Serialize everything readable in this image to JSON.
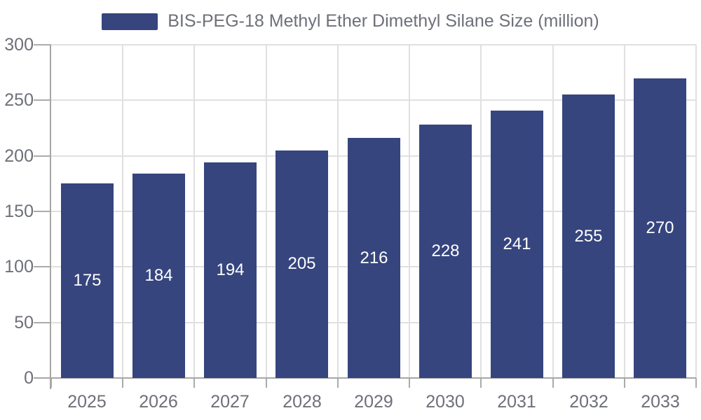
{
  "legend": {
    "label": "BIS-PEG-18 Methyl Ether Dimethyl Silane Size (million)"
  },
  "chart_data": {
    "type": "bar",
    "title": "BIS-PEG-18 Methyl Ether Dimethyl Silane Size (million)",
    "categories": [
      "2025",
      "2026",
      "2027",
      "2028",
      "2029",
      "2030",
      "2031",
      "2032",
      "2033"
    ],
    "values": [
      175,
      184,
      194,
      205,
      216,
      228,
      241,
      255,
      270
    ],
    "series": [
      {
        "name": "BIS-PEG-18 Methyl Ether Dimethyl Silane Size (million)",
        "values": [
          175,
          184,
          194,
          205,
          216,
          228,
          241,
          255,
          270
        ]
      }
    ],
    "xlabel": "",
    "ylabel": "",
    "ylim": [
      0,
      300
    ],
    "yticks": [
      0,
      50,
      100,
      150,
      200,
      250,
      300
    ],
    "grid": true,
    "legend_position": "top",
    "bar_color": "#36457E",
    "value_label_color": "#ffffff",
    "axis_text_color": "#6E7079"
  }
}
